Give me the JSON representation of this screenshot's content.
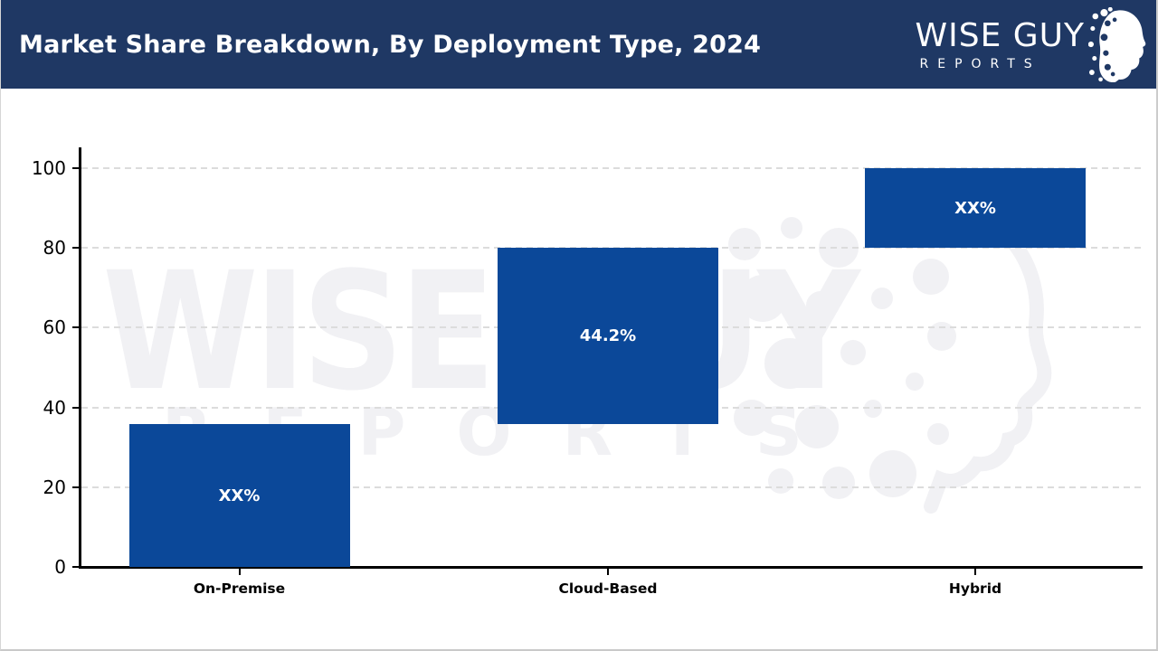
{
  "page": {
    "background": "#ffffff",
    "frame_border": "#cccccc"
  },
  "header": {
    "title": "Market Share Breakdown, By Deployment Type, 2024",
    "background": "#1f3864",
    "logo": {
      "line1": "WISE GUY",
      "line2": "REPORTS",
      "head_icon": "dotted-head-profile"
    }
  },
  "watermark": {
    "line1": "WISE GUY",
    "line2": "REPORTS",
    "head_icon": "dotted-head-profile"
  },
  "chart_data": {
    "type": "bar",
    "subtype": "waterfall",
    "title": "Market Share Breakdown, By Deployment Type, 2024",
    "categories": [
      "On-Premise",
      "Cloud-Based",
      "Hybrid"
    ],
    "series": [
      {
        "name": "Market share (%)",
        "segments": [
          {
            "category": "On-Premise",
            "start": 0,
            "end": 35.8,
            "label": "XX%"
          },
          {
            "category": "Cloud-Based",
            "start": 35.8,
            "end": 80,
            "label": "44.2%"
          },
          {
            "category": "Hybrid",
            "start": 80,
            "end": 100,
            "label": "XX%"
          }
        ]
      }
    ],
    "bar_labels": [
      "XX%",
      "44.2%",
      "XX%"
    ],
    "y_ticks": [
      0,
      20,
      40,
      60,
      80,
      100
    ],
    "ylim": [
      0,
      105
    ],
    "grid": "horizontal-dashed",
    "legend": "none",
    "xlabel": "",
    "ylabel": "",
    "bar_color": "#0b4899",
    "label_color": "#ffffff"
  }
}
